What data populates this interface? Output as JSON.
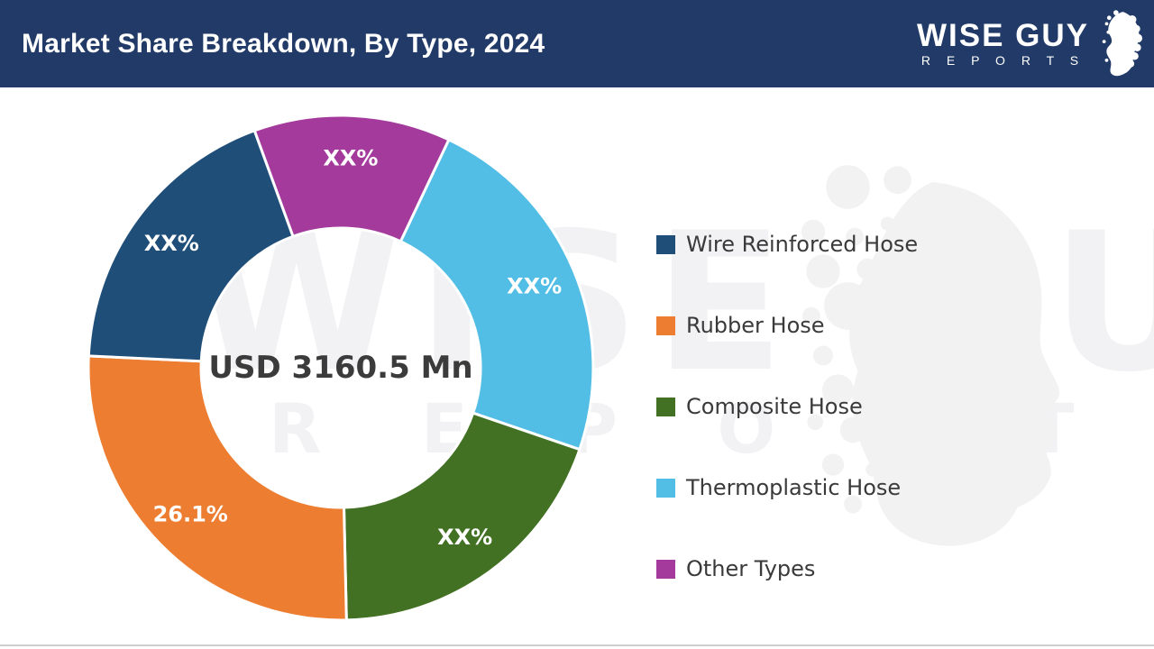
{
  "header": {
    "title": "Market Share Breakdown, By Type, 2024",
    "bg_color": "#213A67",
    "logo": {
      "line1": "WISE GUY",
      "line2": "R E P O R T S"
    }
  },
  "watermark": {
    "line1": "WISE GUY",
    "line2": "R E P O R T S"
  },
  "chart_data": {
    "type": "pie",
    "subtype": "donut",
    "title": "Market Share Breakdown, By Type, 2024",
    "center_text": "USD 3160.5 Mn",
    "legend_position": "right",
    "clockwise": true,
    "start_angle_deg": -20,
    "slices": [
      {
        "label": "Other Types",
        "display_label": "XX%",
        "value_pct_est": 12.6,
        "color": "#A43A9C"
      },
      {
        "label": "Thermoplastic Hose",
        "display_label": "XX%",
        "value_pct_est": 23.2,
        "color": "#52BEE6"
      },
      {
        "label": "Composite Hose",
        "display_label": "XX%",
        "value_pct_est": 19.4,
        "color": "#427123"
      },
      {
        "label": "Rubber Hose",
        "display_label": "26.1%",
        "value_pct_est": 26.1,
        "color": "#ED7D31"
      },
      {
        "label": "Wire Reinforced Hose",
        "display_label": "XX%",
        "value_pct_est": 18.7,
        "color": "#1F4E79"
      }
    ]
  },
  "legend": {
    "items": [
      {
        "label": "Wire Reinforced Hose"
      },
      {
        "label": "Rubber Hose"
      },
      {
        "label": "Composite Hose"
      },
      {
        "label": "Thermoplastic Hose"
      },
      {
        "label": "Other Types"
      }
    ]
  },
  "center_label": "USD 3160.5 Mn"
}
